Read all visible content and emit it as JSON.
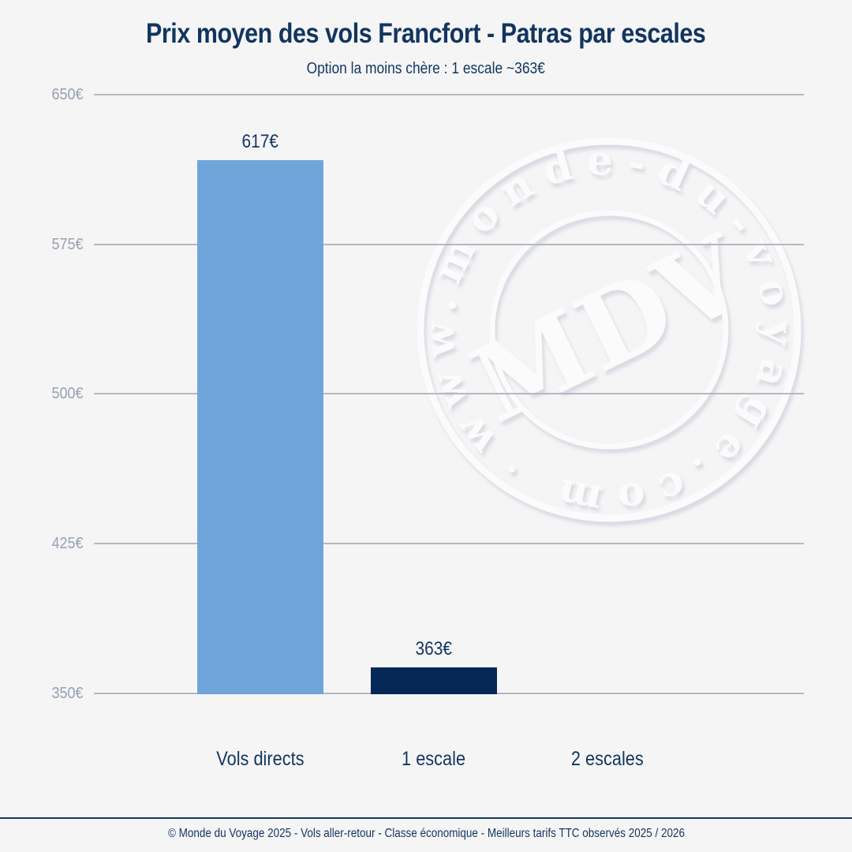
{
  "header": {
    "title": "Prix moyen des vols Francfort - Patras par escales",
    "subtitle": "Option la moins chère : 1 escale ~363€"
  },
  "chart_data": {
    "type": "bar",
    "title": "Prix moyen des vols Francfort - Patras par escales",
    "subtitle": "Option la moins chère : 1 escale ~363€",
    "categories": [
      "Vols directs",
      "1 escale",
      "2 escales"
    ],
    "values": [
      617,
      363,
      null
    ],
    "value_labels": [
      "617€",
      "363€",
      null
    ],
    "bar_colors": [
      "#70a5da",
      "#062859",
      null
    ],
    "xlabel": "",
    "ylabel": "",
    "ylim": [
      350,
      650
    ],
    "yticks": [
      350,
      425,
      500,
      575,
      650
    ],
    "ytick_labels": [
      "350€",
      "425€",
      "500€",
      "575€",
      "650€"
    ],
    "grid": true,
    "legend": false,
    "currency": "€"
  },
  "watermark": {
    "ring_text": "www.monde-du-voyage.com ·",
    "center_text": "MDV"
  },
  "footer": {
    "text": "© Monde du Voyage 2025 - Vols aller-retour - Classe économique - Meilleurs tarifs TTC observés 2025 / 2026"
  },
  "colors": {
    "background": "#f5f5f6",
    "navy_text": "#12355f",
    "bar_direct": "#70a5da",
    "bar_one_stop": "#062859",
    "gridline": "#b4b8c2",
    "ytick_label": "#98a0b0",
    "watermark_shadow": "#d3d6dd"
  }
}
